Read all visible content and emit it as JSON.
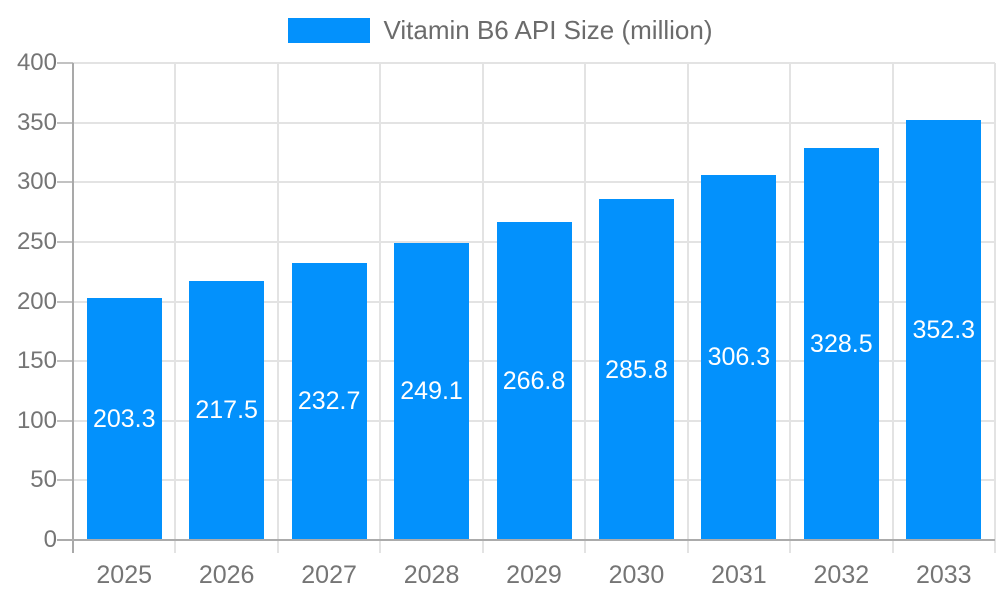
{
  "chart_data": {
    "type": "bar",
    "title": "Vitamin B6 API Size (million)",
    "categories": [
      "2025",
      "2026",
      "2027",
      "2028",
      "2029",
      "2030",
      "2031",
      "2032",
      "2033"
    ],
    "values": [
      203.3,
      217.5,
      232.7,
      249.1,
      266.8,
      285.8,
      306.3,
      328.5,
      352.3
    ],
    "value_labels": [
      "203.3",
      "217.5",
      "232.7",
      "249.1",
      "266.8",
      "285.8",
      "306.3",
      "328.5",
      "352.3"
    ],
    "y_tick_labels": [
      "0",
      "50",
      "100",
      "150",
      "200",
      "250",
      "300",
      "350",
      "400"
    ],
    "xlabel": "",
    "ylabel": "",
    "ylim": [
      0,
      400
    ],
    "y_tick_step": 50,
    "grid": true,
    "legend_position": "top"
  },
  "colors": {
    "bar": "#0391fc",
    "bar_label": "#ffffff",
    "axis_label": "#757575",
    "legend_text": "#6b6b6b",
    "gridline": "#e3e3e3",
    "axis_line": "#a9a9a9",
    "baseline": "#ababab",
    "tick": "#c2c2c2",
    "background": "#ffffff"
  }
}
